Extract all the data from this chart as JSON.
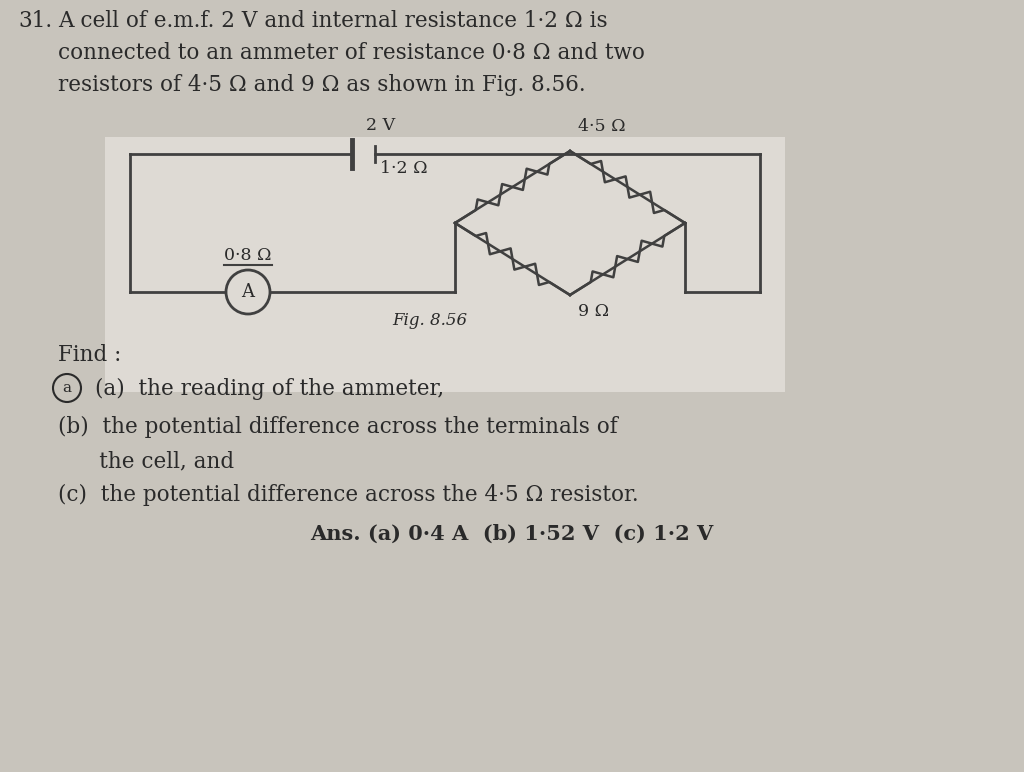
{
  "bg_color": "#c8c4bc",
  "circuit_bg": "#e8e4de",
  "text_color": "#2a2a2a",
  "line_color": "#404040",
  "font_size_body": 15.5,
  "font_size_circuit": 12.5,
  "font_size_fig": 12,
  "font_size_ans": 15,
  "line1": "A cell of e.m.f. 2 V and internal resistance 1·2 Ω is",
  "line2": "connected to an ammeter of resistance 0·8 Ω and two",
  "line3": "resistors of 4·5 Ω and 9 Ω as shown in Fig. 8.56.",
  "num_label": "31.",
  "emf_label": "2 V",
  "int_r_label": "1·2 Ω",
  "amm_r_label": "0·8 Ω",
  "r1_label": "4·5 Ω",
  "r2_label": "9 Ω",
  "fig_label": "Fig. 8.56",
  "find_text": "Find :",
  "qa": "(a)  the reading of the ammeter,",
  "qb1": "(b)  the potential difference across the terminals of",
  "qb2": "      the cell, and",
  "qc": "(c)  the potential difference across the 4·5 Ω resistor.",
  "ans": "Ans. (a) 0·4 A  (b) 1·52 V  (c) 1·2 V"
}
